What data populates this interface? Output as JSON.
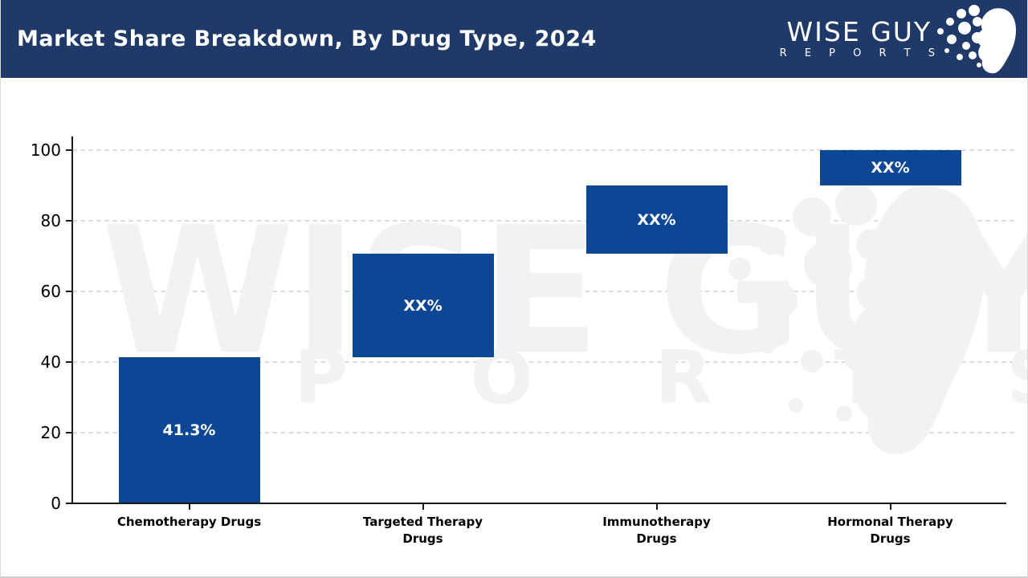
{
  "header": {
    "title": "Market Share Breakdown, By Drug Type, 2024",
    "logo": {
      "line1": "WISE GUY",
      "line2": "R E P O R T S"
    }
  },
  "watermark": {
    "line1": "WISE GUY",
    "line2": "P O R T S"
  },
  "colors": {
    "header_bg": "#1f3a68",
    "bar": "#0d4694",
    "grid": "#dcdcdc",
    "axis": "#1a1a1a",
    "bar_label": "#ffffff",
    "watermark": "#f2f2f2",
    "title_text": "#ffffff",
    "tick_text": "#000000"
  },
  "chart_data": {
    "type": "bar",
    "subtype": "waterfall",
    "title": "Market Share Breakdown, By Drug Type, 2024",
    "xlabel": "",
    "ylabel": "",
    "ylim": [
      0,
      100
    ],
    "yticks": [
      0,
      20,
      40,
      60,
      80,
      100
    ],
    "grid": "horizontal-dashed",
    "legend": "none",
    "categories": [
      "Chemotherapy Drugs",
      "Targeted Therapy Drugs",
      "Immunotherapy Drugs",
      "Hormonal Therapy Drugs"
    ],
    "category_label_lines": [
      [
        "Chemotherapy Drugs"
      ],
      [
        "Targeted Therapy",
        "Drugs"
      ],
      [
        "Immunotherapy",
        "Drugs"
      ],
      [
        "Hormonal Therapy",
        "Drugs"
      ]
    ],
    "bars": [
      {
        "category": "Chemotherapy Drugs",
        "start": 0,
        "end": 41.3,
        "value_shown": "41.3%"
      },
      {
        "category": "Targeted Therapy Drugs",
        "start": 41.3,
        "end": 70.6,
        "value_shown": "XX%"
      },
      {
        "category": "Immunotherapy Drugs",
        "start": 70.6,
        "end": 90,
        "value_shown": "XX%"
      },
      {
        "category": "Hormonal Therapy Drugs",
        "start": 90,
        "end": 100,
        "value_shown": "XX%"
      }
    ]
  }
}
